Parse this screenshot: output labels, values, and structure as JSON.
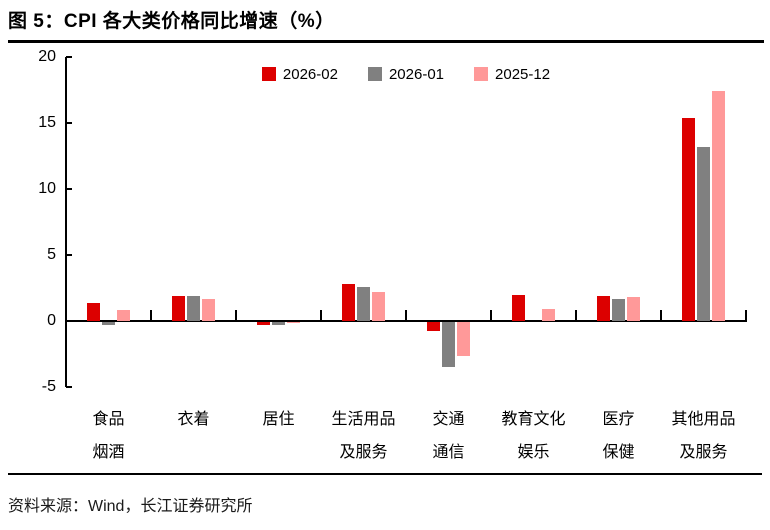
{
  "title": "图 5：CPI 各大类价格同比增速（%）",
  "source": "资料来源：Wind，长江证券研究所",
  "chart_data": {
    "type": "bar",
    "title": "CPI 各大类价格同比增速（%）",
    "categories": [
      "食品烟酒",
      "衣着",
      "居住",
      "生活用品及服务",
      "交通通信",
      "教育文化娱乐",
      "医疗保健",
      "其他用品及服务"
    ],
    "category_labels_2line": [
      [
        "食品",
        "烟酒"
      ],
      [
        "衣着",
        ""
      ],
      [
        "居住",
        ""
      ],
      [
        "生活用品",
        "及服务"
      ],
      [
        "交通",
        "通信"
      ],
      [
        "教育文化",
        "娱乐"
      ],
      [
        "医疗",
        "保健"
      ],
      [
        "其他用品",
        "及服务"
      ]
    ],
    "series": [
      {
        "name": "2026-02",
        "color": "#DC0000",
        "values": [
          1.4,
          1.9,
          -0.2,
          2.8,
          -0.7,
          2.0,
          1.9,
          15.4
        ]
      },
      {
        "name": "2026-01",
        "color": "#808080",
        "values": [
          -0.2,
          1.9,
          -0.2,
          2.6,
          -3.4,
          0.0,
          1.7,
          13.2
        ]
      },
      {
        "name": "2025-12",
        "color": "#FF9999",
        "values": [
          0.8,
          1.7,
          -0.1,
          2.2,
          -2.6,
          0.9,
          1.8,
          17.4
        ]
      }
    ],
    "ylim": [
      -5,
      20
    ],
    "yticks": [
      20,
      15,
      10,
      5,
      0,
      -5
    ],
    "grid": false,
    "legend_position": "top-center",
    "axis_color": "#000000"
  }
}
